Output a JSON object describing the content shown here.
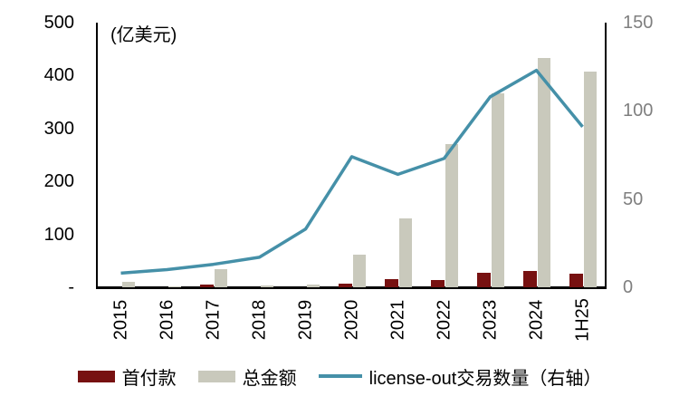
{
  "unit_label": "(亿美元)",
  "colors": {
    "first_payment_bar": "#771111",
    "total_amount_bar": "#C9C9BC",
    "deal_count_line": "#4590A8",
    "left_axis_text": "#000000",
    "right_axis_text": "#7F7F7F",
    "axis_line": "#000000"
  },
  "left_axis": {
    "ticks": [
      "500",
      "400",
      "300",
      "200",
      "100",
      "-"
    ]
  },
  "right_axis": {
    "ticks": [
      "150",
      "100",
      "50",
      "0"
    ]
  },
  "legend": [
    {
      "label": "首付款",
      "type": "bar"
    },
    {
      "label": "总金额",
      "type": "bar"
    },
    {
      "label": "license-out交易数量（右轴）",
      "type": "line"
    }
  ],
  "chart_data": {
    "type": "bar",
    "subtype": "grouped-bars-with-line",
    "title": "(亿美元)",
    "categories": [
      "2015",
      "2016",
      "2017",
      "2018",
      "2019",
      "2020",
      "2021",
      "2022",
      "2023",
      "2024",
      "1H25"
    ],
    "series": [
      {
        "name": "首付款",
        "type": "bar",
        "axis": "left",
        "values": [
          0,
          0,
          5,
          0,
          0,
          7,
          16,
          14,
          27,
          30,
          25
        ]
      },
      {
        "name": "总金额",
        "type": "bar",
        "axis": "left",
        "values": [
          11,
          1,
          34,
          4,
          5,
          62,
          131,
          270,
          367,
          433,
          407
        ]
      },
      {
        "name": "license-out交易数量（右轴）",
        "type": "line",
        "axis": "right",
        "values": [
          8,
          10,
          13,
          17,
          33,
          74,
          64,
          73,
          108,
          123,
          91
        ]
      }
    ],
    "left_ylim": [
      0,
      500
    ],
    "right_ylim": [
      0,
      150
    ],
    "xlabel": "",
    "ylabel_left": "(亿美元)",
    "grid": false,
    "legend_position": "bottom"
  }
}
